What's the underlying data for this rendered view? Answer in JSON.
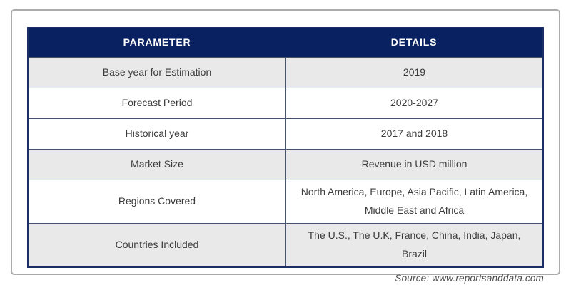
{
  "chart_data": {
    "type": "table",
    "title": "Report scope parameters table",
    "columns": [
      "PARAMETER",
      "DETAILS"
    ],
    "rows": [
      {
        "parameter": "Base year for Estimation",
        "details": "2019",
        "shaded": true
      },
      {
        "parameter": "Forecast Period",
        "details": "2020-2027",
        "shaded": false
      },
      {
        "parameter": "Historical year",
        "details": "2017 and 2018",
        "shaded": false
      },
      {
        "parameter": "Market Size",
        "details": "Revenue in USD million",
        "shaded": true
      },
      {
        "parameter": "Regions Covered",
        "details": "North America, Europe, Asia Pacific, Latin America, Middle East and Africa",
        "shaded": false
      },
      {
        "parameter": "Countries Included",
        "details": "The U.S., The  U.K, France, China, India, Japan, Brazil",
        "shaded": true
      }
    ],
    "source": "Source: www.reportsanddata.com"
  },
  "colors": {
    "header_bg": "#0a2161",
    "shaded_row_bg": "#e9e9e9",
    "table_border": "#1b2f66",
    "inner_border": "#45556e",
    "body_text": "#3c3c3c",
    "source_text": "#4a4a4a",
    "frame_border": "#ababab"
  }
}
